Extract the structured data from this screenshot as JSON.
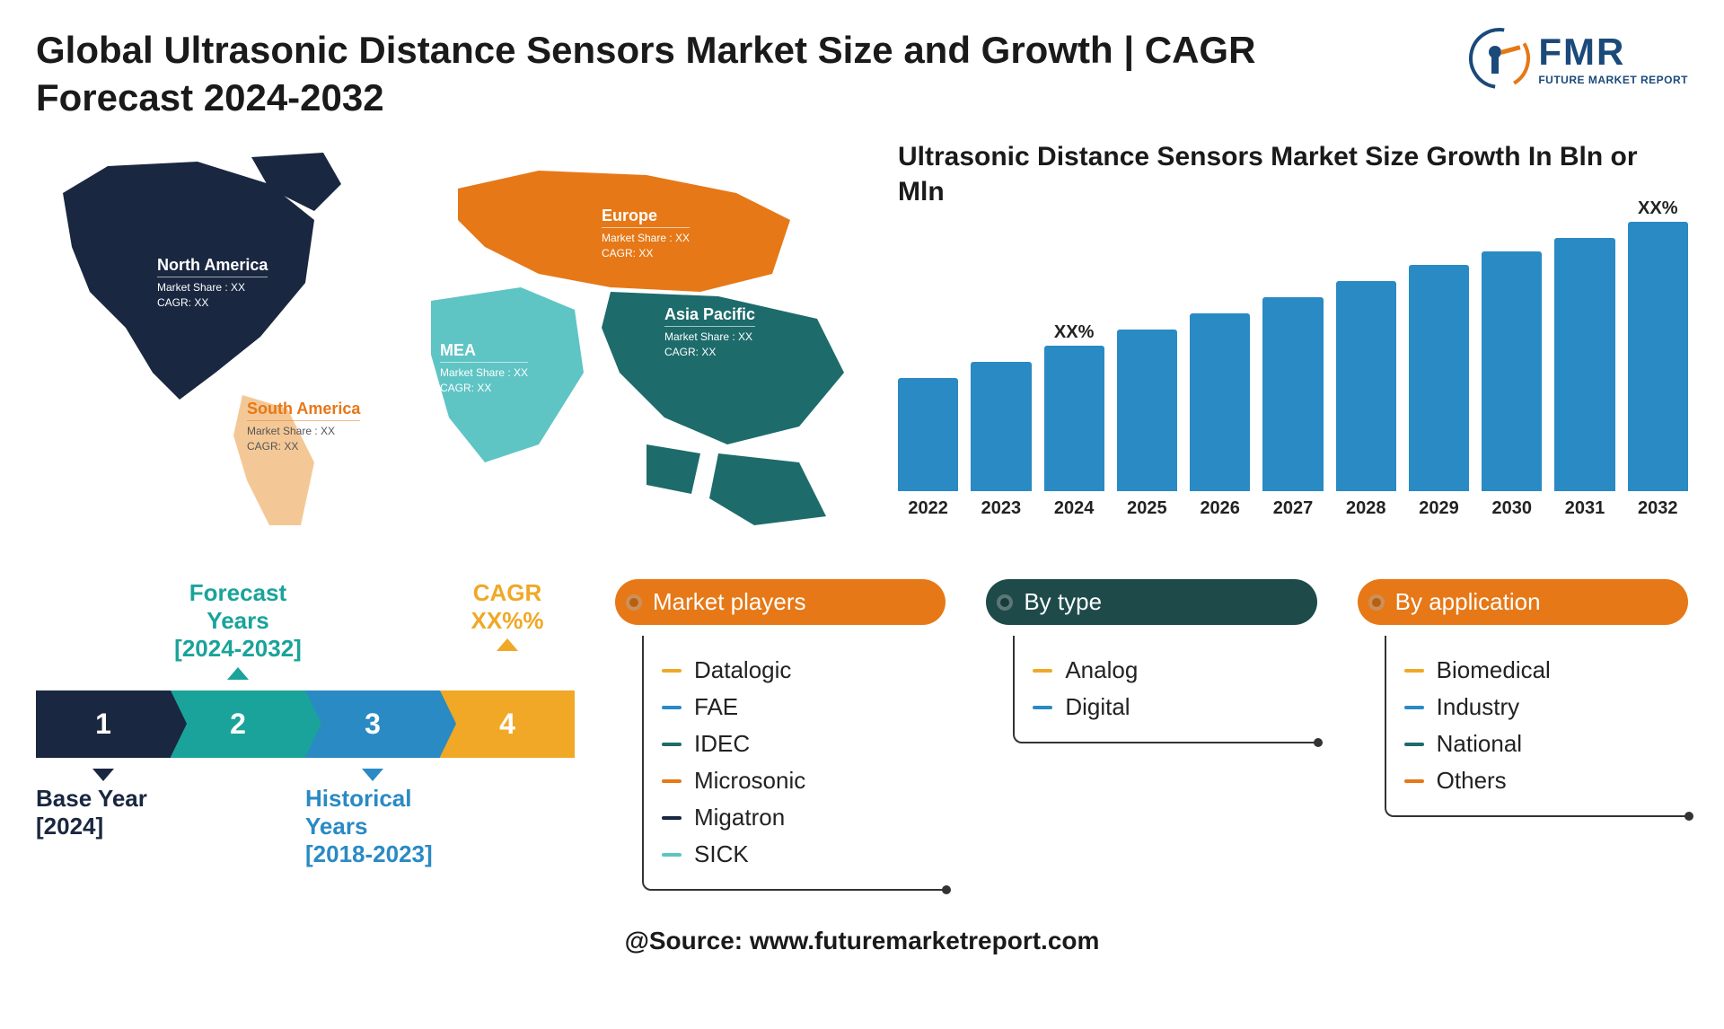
{
  "title": "Global Ultrasonic Distance Sensors Market Size and Growth | CAGR Forecast 2024-2032",
  "logo": {
    "fmr": "FMR",
    "sub": "FUTURE MARKET REPORT"
  },
  "map": {
    "regions": [
      {
        "key": "na",
        "name": "North America",
        "share": "Market Share : XX",
        "cagr": "CAGR: XX",
        "color": "#1a2740"
      },
      {
        "key": "sa",
        "name": "South America",
        "share": "Market Share : XX",
        "cagr": "CAGR: XX",
        "color": "#f4c896"
      },
      {
        "key": "eu",
        "name": "Europe",
        "share": "Market Share : XX",
        "cagr": "CAGR: XX",
        "color": "#e67817"
      },
      {
        "key": "mea",
        "name": "MEA",
        "share": "Market Share : XX",
        "cagr": "CAGR: XX",
        "color": "#5fc4c4"
      },
      {
        "key": "ap",
        "name": "Asia Pacific",
        "share": "Market Share : XX",
        "cagr": "CAGR: XX",
        "color": "#1e6b6b"
      }
    ]
  },
  "chart": {
    "title": "Ultrasonic Distance Sensors Market Size Growth In Bln or Mln",
    "type": "bar",
    "bar_color": "#2a8ac4",
    "years": [
      "2022",
      "2023",
      "2024",
      "2025",
      "2026",
      "2027",
      "2028",
      "2029",
      "2030",
      "2031",
      "2032"
    ],
    "heights_pct": [
      42,
      48,
      54,
      60,
      66,
      72,
      78,
      84,
      89,
      94,
      100
    ],
    "top_labels": {
      "2024": "XX%",
      "2032": "XX%"
    },
    "title_fontsize": 30,
    "label_fontsize": 20
  },
  "timeline": {
    "forecast_label": "Forecast Years",
    "forecast_range": "[2024-2032]",
    "cagr_label": "CAGR",
    "cagr_value": "XX%%",
    "base_label": "Base Year",
    "base_value": "[2024]",
    "hist_label": "Historical Years",
    "hist_range": "[2018-2023]",
    "segments": [
      "1",
      "2",
      "3",
      "4"
    ],
    "seg_colors": [
      "#1a2740",
      "#1aa39a",
      "#2a8ac4",
      "#f0a826"
    ]
  },
  "categories": [
    {
      "header": "Market players",
      "header_color": "#e67817",
      "items": [
        {
          "label": "Datalogic",
          "color": "#f0a826"
        },
        {
          "label": "FAE",
          "color": "#2a8ac4"
        },
        {
          "label": "IDEC",
          "color": "#1e6b6b"
        },
        {
          "label": "Microsonic",
          "color": "#e67817"
        },
        {
          "label": "Migatron",
          "color": "#1a2740"
        },
        {
          "label": "SICK",
          "color": "#5fc4c4"
        }
      ]
    },
    {
      "header": "By type",
      "header_color": "#1e4a4a",
      "items": [
        {
          "label": "Analog",
          "color": "#f0a826"
        },
        {
          "label": "Digital",
          "color": "#2a8ac4"
        }
      ]
    },
    {
      "header": "By application",
      "header_color": "#e67817",
      "items": [
        {
          "label": "Biomedical",
          "color": "#f0a826"
        },
        {
          "label": "Industry",
          "color": "#2a8ac4"
        },
        {
          "label": "National",
          "color": "#1e6b6b"
        },
        {
          "label": "Others",
          "color": "#e67817"
        }
      ]
    }
  ],
  "source": "@Source: www.futuremarketreport.com"
}
